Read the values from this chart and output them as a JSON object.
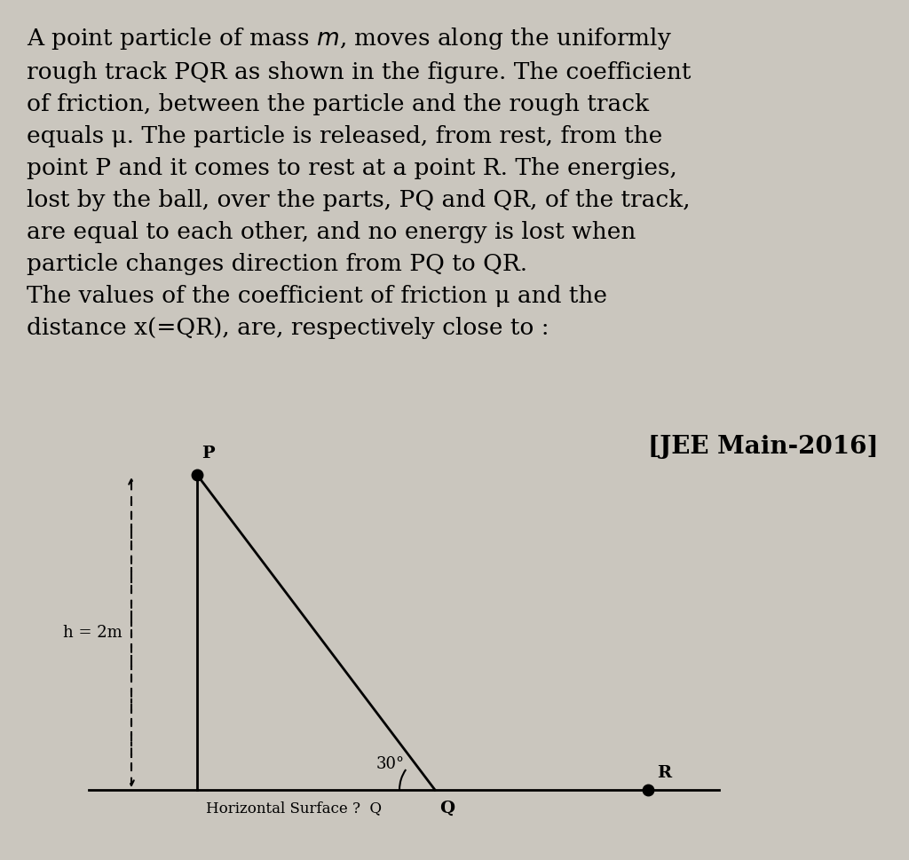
{
  "bg_color": "#cac6be",
  "text_color": "#000000",
  "jee_label": "[JEE Main-2016]",
  "paragraph": "A point particle of mass $m$, moves along the uniformly\nrough track PQR as shown in the figure. The coefficient\nof friction, between the particle and the rough track\nequals μ. The particle is released, from rest, from the\npoint P and it comes to rest at a point R. The energies,\nlost by the ball, over the parts, PQ and QR, of the track,\nare equal to each other, and no energy is lost when\nparticle changes direction from PQ to QR.\nThe values of the coefficient of friction μ and the\ndistance x(=QR), are, respectively close to :",
  "h_label": "h = 2m",
  "angle_label": "30°",
  "horiz_label": "Horizontal Surface ?  Q",
  "P_label": "P",
  "Q_label": "Q",
  "R_label": "R",
  "font_size_para": 19,
  "font_size_jee": 20,
  "font_size_diagram": 13
}
